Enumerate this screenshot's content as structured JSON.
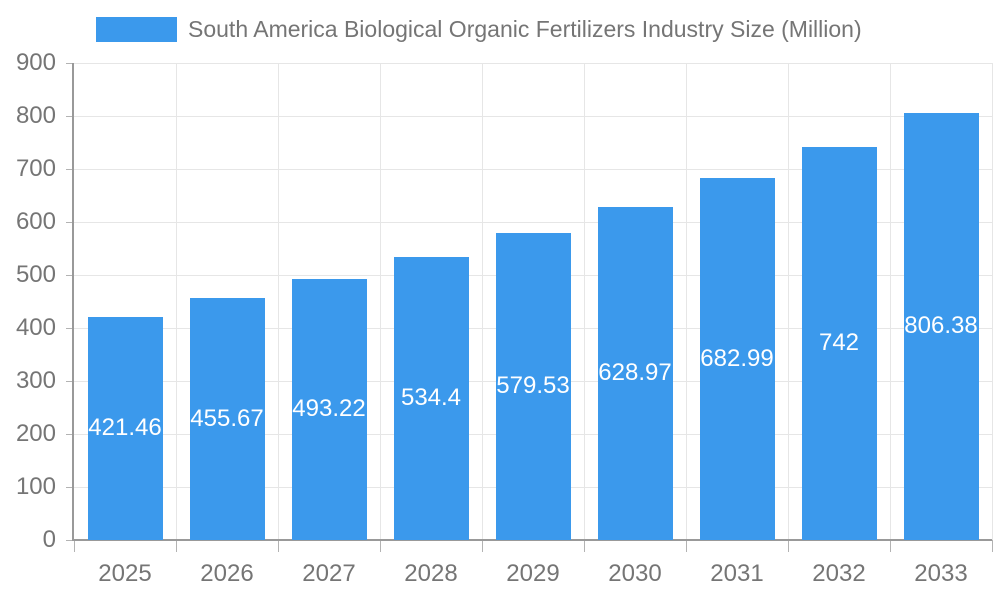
{
  "chart_data": {
    "type": "bar",
    "title": "South America Biological Organic Fertilizers Industry Size (Million)",
    "categories": [
      "2025",
      "2026",
      "2027",
      "2028",
      "2029",
      "2030",
      "2031",
      "2032",
      "2033"
    ],
    "values": [
      421.46,
      455.67,
      493.22,
      534.4,
      579.53,
      628.97,
      682.99,
      742,
      806.38
    ],
    "value_labels": [
      "421.46",
      "455.67",
      "493.22",
      "534.4",
      "579.53",
      "628.97",
      "682.99",
      "742",
      "806.38"
    ],
    "xlabel": "",
    "ylabel": "",
    "ylim": [
      0,
      900
    ],
    "ytick_interval": 100,
    "ytick_labels": [
      "0",
      "100",
      "200",
      "300",
      "400",
      "500",
      "600",
      "700",
      "800",
      "900"
    ],
    "grid": true,
    "legend_position": "top",
    "colors": {
      "bar": "#3b99ec",
      "grid": "#e6e6e6",
      "axis": "#999999",
      "tick": "#b3b3b3",
      "axis_text": "#757575",
      "value_text": "#ffffff",
      "background": "#ffffff"
    }
  }
}
